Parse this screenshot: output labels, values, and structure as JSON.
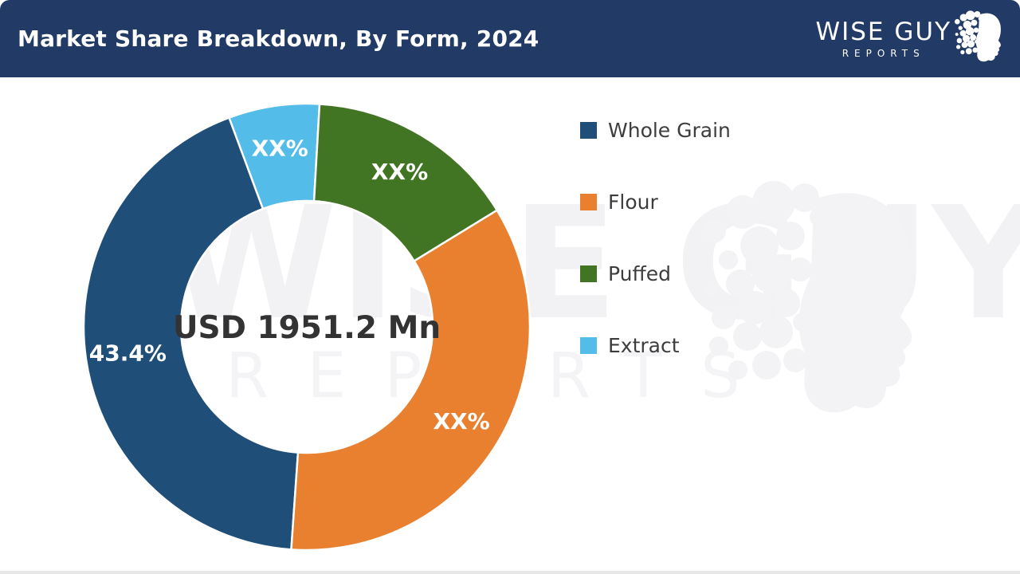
{
  "header": {
    "title": "Market Share Breakdown, By Form, 2024",
    "bg_color": "#213a66",
    "logo": {
      "line1": "WISE GUY",
      "line2": "REPORTS"
    }
  },
  "watermark": {
    "line1": "WISE GUY",
    "line2": "REPORTS"
  },
  "chart_data": {
    "type": "pie",
    "subtype": "donut",
    "title": "Market Share Breakdown, By Form, 2024",
    "center_label": "USD 1951.2 Mn",
    "start_angle_deg": 184,
    "legend_position": "right",
    "slices": [
      {
        "label": "Whole Grain",
        "value_pct": 43.4,
        "displayed_value": "43.4%",
        "color": "#1f4e79"
      },
      {
        "label": "Extract",
        "value_pct": 6.6,
        "displayed_value": "XX%",
        "color": "#54bce8"
      },
      {
        "label": "Puffed",
        "value_pct": 15.4,
        "displayed_value": "XX%",
        "color": "#417423"
      },
      {
        "label": "Flour",
        "value_pct": 35.0,
        "displayed_value": "XX%",
        "color": "#e8802f"
      }
    ],
    "legend": [
      {
        "label": "Whole Grain",
        "color": "#1f4e79"
      },
      {
        "label": "Flour",
        "color": "#e8802f"
      },
      {
        "label": "Puffed",
        "color": "#417423"
      },
      {
        "label": "Extract",
        "color": "#54bce8"
      }
    ]
  },
  "colors": {
    "header_bg": "#213a66",
    "center_text": "#333333",
    "legend_text": "#3d3d3d",
    "watermark": "#f2f2f4",
    "bottom_strip": "#e7e7e7"
  }
}
